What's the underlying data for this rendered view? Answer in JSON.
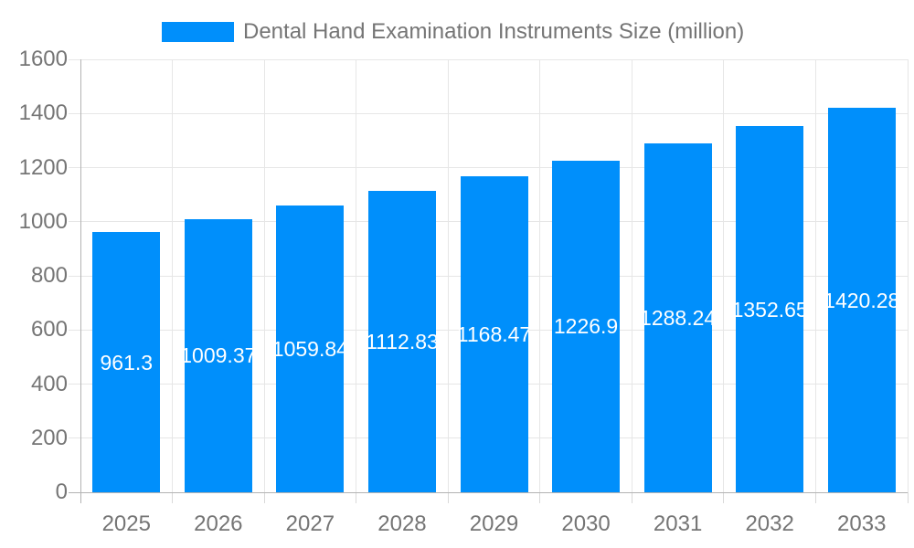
{
  "legend": {
    "label": "Dental Hand Examination Instruments Size (million)"
  },
  "chart_data": {
    "type": "bar",
    "title": "Dental Hand Examination Instruments Size (million)",
    "xlabel": "",
    "ylabel": "",
    "categories": [
      "2025",
      "2026",
      "2027",
      "2028",
      "2029",
      "2030",
      "2031",
      "2032",
      "2033"
    ],
    "series": [
      {
        "name": "Dental Hand Examination Instruments Size (million)",
        "values": [
          961.3,
          1009.37,
          1059.84,
          1112.83,
          1168.47,
          1226.9,
          1288.24,
          1352.65,
          1420.28
        ]
      }
    ],
    "bar_labels": [
      "961.3",
      "1009.37",
      "1059.84",
      "1112.83",
      "1168.47",
      "1226.9",
      "1288.24",
      "1352.65",
      "1420.28"
    ],
    "ylim": [
      0,
      1600
    ],
    "yticks": [
      0,
      200,
      400,
      600,
      800,
      1000,
      1200,
      1400,
      1600
    ],
    "grid": true,
    "legend_position": "top",
    "colors": {
      "bar": "#008FFB",
      "axis_text": "#757575",
      "gridline": "#e6e6e6",
      "axis_line": "#b3b3b3",
      "tick": "#d9d9d9",
      "bar_label": "#ffffff",
      "background": "#ffffff"
    }
  }
}
